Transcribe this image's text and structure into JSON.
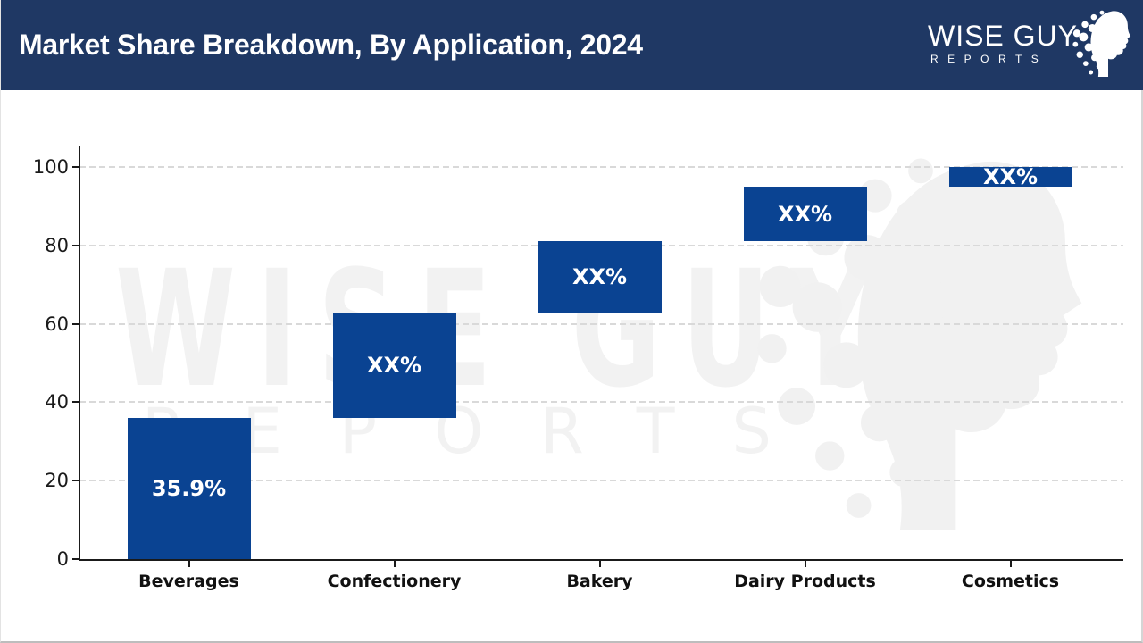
{
  "header": {
    "title": "Market Share Breakdown, By Application, 2024",
    "logo": {
      "wordmark": "WISE GUY",
      "subtext": "REPORTS"
    }
  },
  "watermark": {
    "line1": "WISE GUY",
    "line2": "REPORTS"
  },
  "colors": {
    "header_bg": "#1F3864",
    "bar": "#0A4392",
    "bar_label": "#FFFFFF",
    "axis": "#1A1A1A",
    "gridline": "#D9D9D9",
    "watermark": "#F2F2F2"
  },
  "chart_data": {
    "type": "bar",
    "subtype": "waterfall",
    "title": "Market Share Breakdown, By Application, 2024",
    "xlabel": "",
    "ylabel": "",
    "categories": [
      "Beverages",
      "Confectionery",
      "Bakery",
      "Dairy Products",
      "Cosmetics"
    ],
    "segments": [
      {
        "category": "Beverages",
        "start": 0,
        "end": 35.9,
        "value": 35.9,
        "label": "35.9%"
      },
      {
        "category": "Confectionery",
        "start": 35.9,
        "end": 62.9,
        "value": 27.0,
        "label": "XX%"
      },
      {
        "category": "Bakery",
        "start": 62.9,
        "end": 81.0,
        "value": 18.1,
        "label": "XX%"
      },
      {
        "category": "Dairy Products",
        "start": 81.0,
        "end": 95.0,
        "value": 14.0,
        "label": "XX%"
      },
      {
        "category": "Cosmetics",
        "start": 95.0,
        "end": 100.0,
        "value": 5.0,
        "label": "XX%"
      }
    ],
    "yticks": [
      0,
      20,
      40,
      60,
      80,
      100
    ],
    "ylim": [
      0,
      105.5
    ],
    "grid": "horizontal-dashed",
    "legend": "none"
  }
}
